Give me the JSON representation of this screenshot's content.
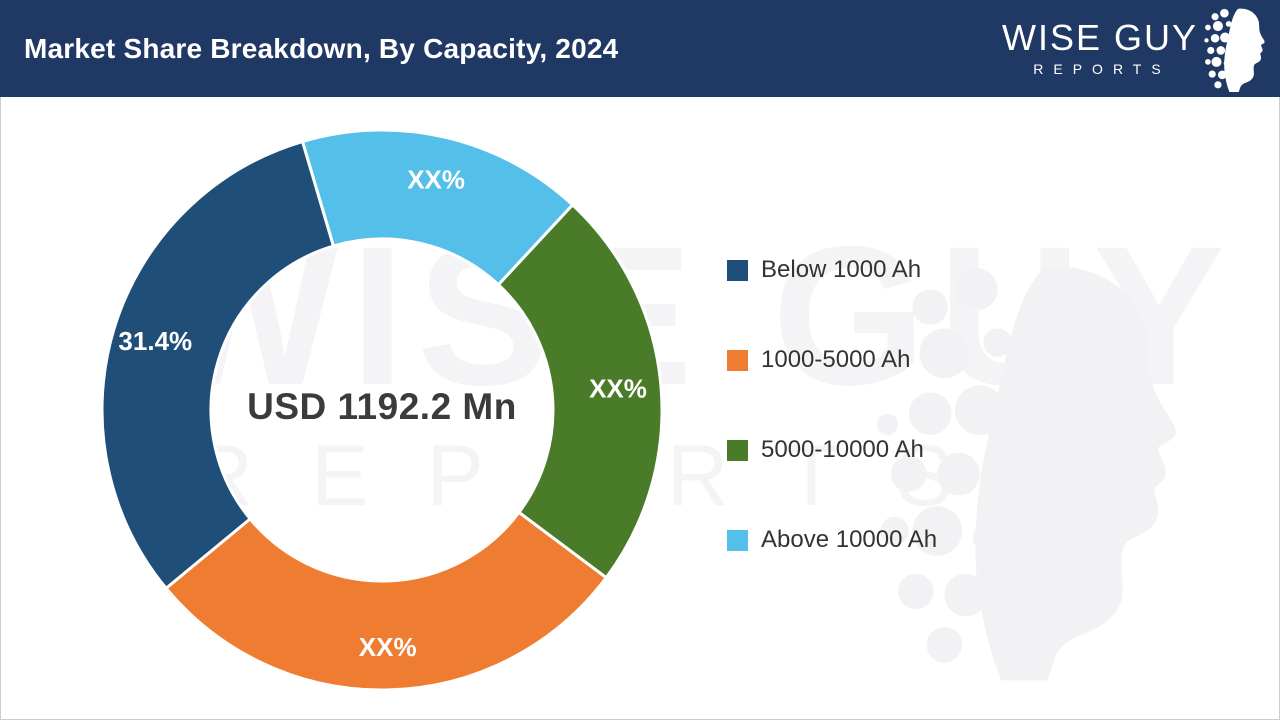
{
  "header": {
    "title": "Market Share Breakdown, By Capacity, 2024",
    "logo": {
      "line1": "WISE GUY",
      "line2": "REPORTS"
    }
  },
  "colors": {
    "header_bg": "#203864",
    "slice_below_1000": "#1f4e79",
    "slice_1000_5000": "#ee7d31",
    "slice_5000_10000": "#4a7b28",
    "slice_above_10000": "#54bfe9",
    "center_text": "#3b3b3b",
    "legend_text": "#333333",
    "slice_label_text": "#ffffff",
    "watermark": "#f2f2f4",
    "content_border": "#cccccc"
  },
  "chart_data": {
    "type": "donut",
    "title": "Market Share Breakdown, By Capacity, 2024",
    "center_label": "USD 1192.2 Mn",
    "units": "percent market share",
    "start_angle_deg": -16.5,
    "direction": "clockwise",
    "inner_radius_ratio": 0.611,
    "legend_position": "right",
    "slices": [
      {
        "label": "Above 10000 Ah",
        "value_pct": 16.5,
        "display": "XX%",
        "color": "#54bfe9"
      },
      {
        "label": "5000-10000 Ah",
        "value_pct": 23.3,
        "display": "XX%",
        "color": "#4a7b28"
      },
      {
        "label": "1000-5000 Ah",
        "value_pct": 28.8,
        "display": "XX%",
        "color": "#ee7d31"
      },
      {
        "label": "Below 1000 Ah",
        "value_pct": 31.4,
        "display": "31.4%",
        "color": "#1f4e79"
      }
    ]
  },
  "legend": {
    "items": [
      {
        "label": "Below 1000 Ah",
        "color": "#1f4e79"
      },
      {
        "label": "1000-5000 Ah",
        "color": "#ee7d31"
      },
      {
        "label": "5000-10000 Ah",
        "color": "#4a7b28"
      },
      {
        "label": "Above 10000 Ah",
        "color": "#54bfe9"
      }
    ]
  },
  "watermark": {
    "line1": "WISE GUY",
    "line2": "REPORTS"
  }
}
